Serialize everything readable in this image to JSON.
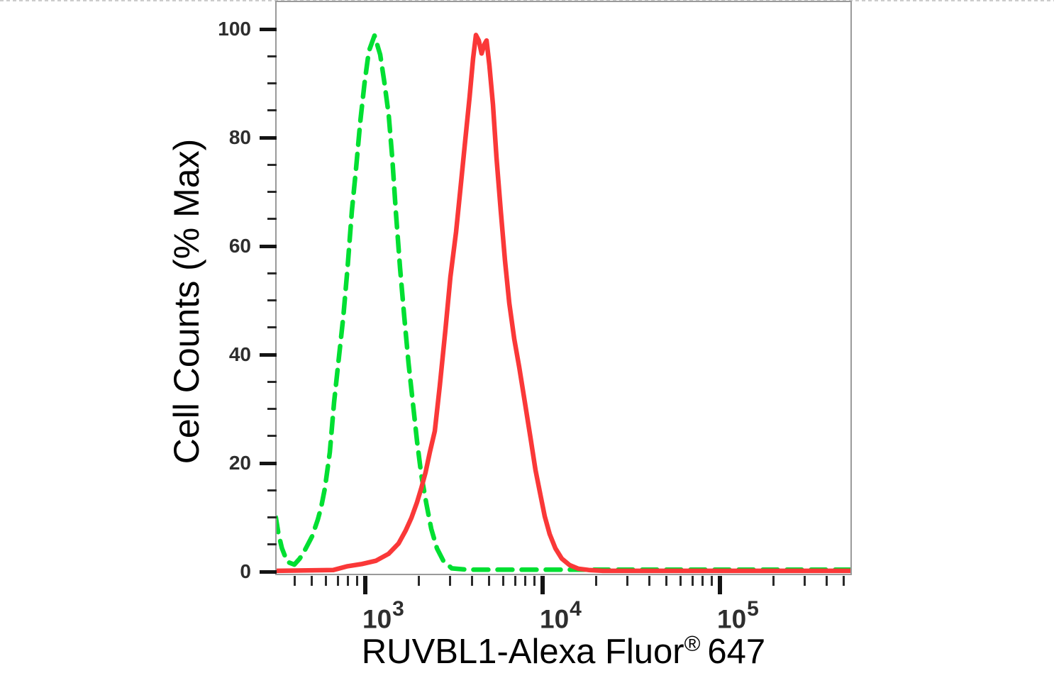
{
  "figure": {
    "background": "#ffffff",
    "xlabel_base": "RUVBL1-Alexa Fluor",
    "xlabel_sup": "®",
    "xlabel_suffix": "647"
  },
  "chart_data": {
    "type": "line",
    "title": "",
    "xlabel": "RUVBL1-Alexa Fluor® 647",
    "ylabel": "Cell Counts (% Max)",
    "x_scale": "log10",
    "xlim": [
      316,
      562000
    ],
    "ylim": [
      0,
      105.5
    ],
    "grid": "off",
    "legend": "none",
    "yticks": {
      "major": [
        100,
        80,
        60,
        40,
        20,
        0
      ],
      "minor_step": 5
    },
    "xticks": {
      "major": [
        {
          "value": 1000,
          "base": "10",
          "exp": "3"
        },
        {
          "value": 10000,
          "base": "10",
          "exp": "4"
        },
        {
          "value": 100000,
          "base": "10",
          "exp": "5"
        }
      ],
      "minor_decades": [
        100,
        1000,
        10000,
        100000
      ]
    },
    "series": [
      {
        "name": "green-dashed-curve",
        "style": "dashed",
        "color": "#00DF32",
        "points": [
          [
            313,
            10
          ],
          [
            324,
            7
          ],
          [
            339,
            4.3
          ],
          [
            363,
            1.8
          ],
          [
            398,
            1.3
          ],
          [
            427,
            2.4
          ],
          [
            457,
            4.0
          ],
          [
            501,
            6.5
          ],
          [
            540,
            9.6
          ],
          [
            565,
            12
          ],
          [
            592,
            15.4
          ],
          [
            631,
            22
          ],
          [
            667,
            31.2
          ],
          [
            711,
            39.7
          ],
          [
            752,
            47.1
          ],
          [
            794,
            56
          ],
          [
            840,
            66.5
          ],
          [
            887,
            74.3
          ],
          [
            937,
            82.9
          ],
          [
            991,
            90.1
          ],
          [
            1047,
            95.9
          ],
          [
            1127,
            98.8
          ],
          [
            1213,
            95.3
          ],
          [
            1282,
            90.1
          ],
          [
            1355,
            84.2
          ],
          [
            1419,
            76.3
          ],
          [
            1486,
            66.5
          ],
          [
            1570,
            56
          ],
          [
            1660,
            46.9
          ],
          [
            1754,
            38.4
          ],
          [
            1854,
            31.2
          ],
          [
            1959,
            24
          ],
          [
            2070,
            17.8
          ],
          [
            2208,
            12.6
          ],
          [
            2355,
            7.9
          ],
          [
            2535,
            4.3
          ],
          [
            2754,
            2.0
          ],
          [
            3076,
            0.6
          ],
          [
            3802,
            0.35
          ],
          [
            549541,
            0.35
          ]
        ]
      },
      {
        "name": "red-solid-curve",
        "style": "solid",
        "color": "#FA3838",
        "points": [
          [
            313,
            0.15
          ],
          [
            661,
            0.3
          ],
          [
            794,
            1.0
          ],
          [
            955,
            1.4
          ],
          [
            1148,
            2.0
          ],
          [
            1355,
            3.3
          ],
          [
            1542,
            5.2
          ],
          [
            1690,
            7.6
          ],
          [
            1820,
            9.9
          ],
          [
            1959,
            12.8
          ],
          [
            2070,
            15.4
          ],
          [
            2188,
            18.3
          ],
          [
            2312,
            22
          ],
          [
            2466,
            25.9
          ],
          [
            2630,
            34.2
          ],
          [
            2831,
            44.6
          ],
          [
            3020,
            54.3
          ],
          [
            3251,
            62.6
          ],
          [
            3467,
            71.7
          ],
          [
            3664,
            79.6
          ],
          [
            3873,
            87.4
          ],
          [
            4055,
            94.6
          ],
          [
            4207,
            98.9
          ],
          [
            4365,
            97.9
          ],
          [
            4529,
            95.5
          ],
          [
            4699,
            97.2
          ],
          [
            4831,
            97.9
          ],
          [
            5012,
            93.3
          ],
          [
            5248,
            86.1
          ],
          [
            5495,
            76.3
          ],
          [
            5808,
            66.5
          ],
          [
            6138,
            57.3
          ],
          [
            6486,
            49.5
          ],
          [
            6918,
            42.9
          ],
          [
            7379,
            37.7
          ],
          [
            7943,
            31.2
          ],
          [
            8551,
            24.6
          ],
          [
            9120,
            18.7
          ],
          [
            9727,
            14.1
          ],
          [
            10280,
            10.2
          ],
          [
            10965,
            6.9
          ],
          [
            11803,
            4.3
          ],
          [
            12823,
            2.4
          ],
          [
            14191,
            1.2
          ],
          [
            15849,
            0.55
          ],
          [
            18197,
            0.3
          ],
          [
            21878,
            0.15
          ],
          [
            549541,
            0.15
          ]
        ]
      }
    ]
  },
  "colors": {
    "green_curve": "#00DF32",
    "red_curve": "#FA3838",
    "spine_gray": "#9a9a9a",
    "tick_black": "#141414",
    "tick_label": "#2e2e2e",
    "title_black": "#000000"
  }
}
